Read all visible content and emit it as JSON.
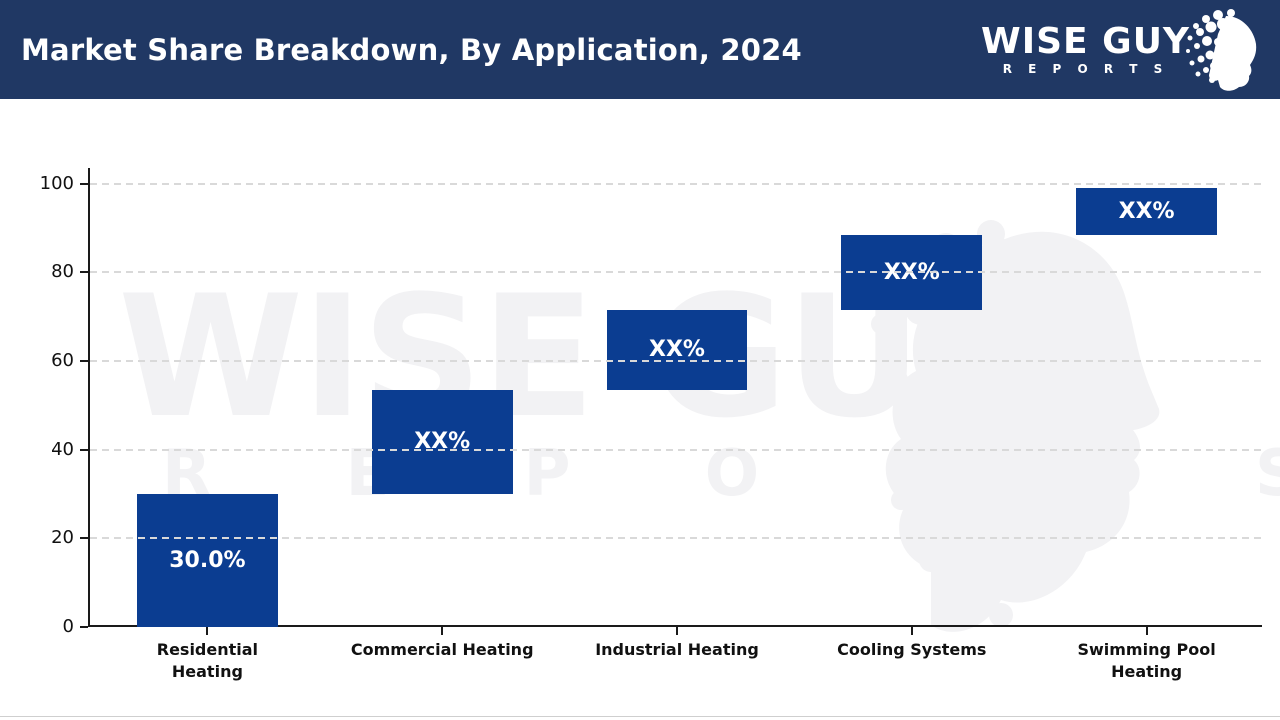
{
  "header": {
    "title": "Market Share Breakdown, By Application, 2024",
    "bg_color": "#203864",
    "logo": {
      "name_line": "WISE GUY",
      "reports_line": "R E P O R T S",
      "face_icon": "dotted-head-profile"
    }
  },
  "watermark": {
    "name_line": "WISE GUY",
    "reports_line": "R E P O R T S",
    "face_icon": "dotted-head-profile"
  },
  "chart_data": {
    "type": "bar",
    "variant": "floating-waterfall",
    "title": "Market Share Breakdown, By Application, 2024",
    "categories": [
      "Residential Heating",
      "Commercial Heating",
      "Industrial Heating",
      "Cooling Systems",
      "Swimming Pool Heating"
    ],
    "category_display": [
      "Residential\nHeating",
      "Commercial Heating",
      "Industrial Heating",
      "Cooling Systems",
      "Swimming Pool\nHeating"
    ],
    "segments": [
      {
        "category": "Residential Heating",
        "start": 0,
        "end": 30,
        "label": "30.0%"
      },
      {
        "category": "Commercial Heating",
        "start": 30,
        "end": 53.5,
        "label": "XX%"
      },
      {
        "category": "Industrial Heating",
        "start": 53.5,
        "end": 71.5,
        "label": "XX%"
      },
      {
        "category": "Cooling Systems",
        "start": 71.5,
        "end": 88.5,
        "label": "XX%"
      },
      {
        "category": "Swimming Pool Heating",
        "start": 88.5,
        "end": 99,
        "label": "XX%"
      }
    ],
    "yticks": [
      0,
      20,
      40,
      60,
      80,
      100
    ],
    "ylim": [
      0,
      103.5
    ],
    "xlabel": "",
    "ylabel": "",
    "bar_color": "#0b3d91",
    "bar_label_color": "#ffffff",
    "axis_color": "#1a1a1a",
    "grid": {
      "horizontal": true,
      "style": "dashed",
      "color": "#d9d9d9",
      "above_bars": true
    },
    "legend": null,
    "background": "#ffffff"
  }
}
